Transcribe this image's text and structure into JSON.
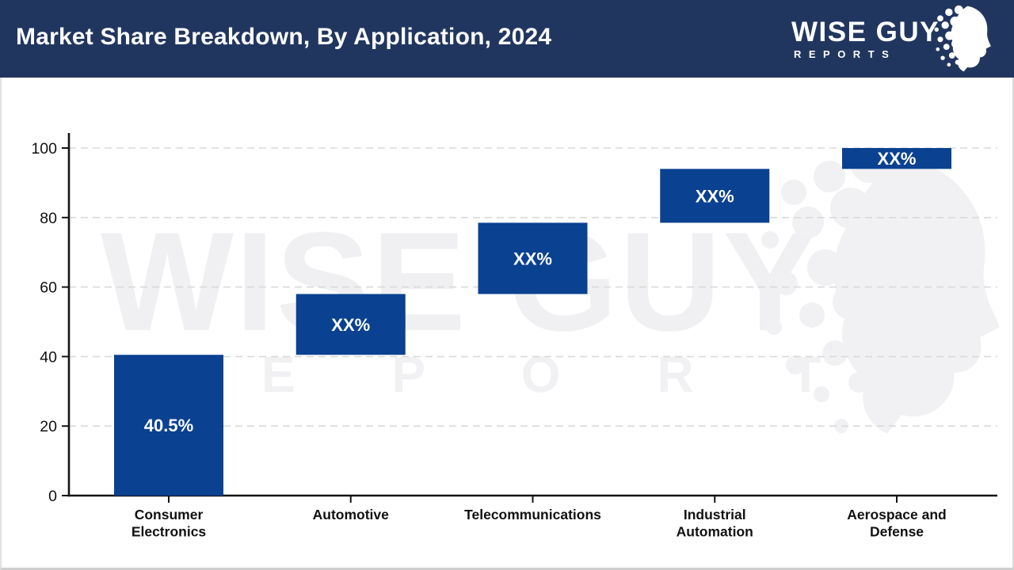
{
  "header": {
    "title": "Market Share Breakdown, By Application, 2024",
    "logo": {
      "line1": "WISE GUY",
      "line2": "REPORTS"
    }
  },
  "watermark": {
    "line1": "WISE GUY",
    "line2": "R E P O R T S"
  },
  "chart_data": {
    "type": "bar",
    "subtype": "waterfall",
    "title": "Market Share Breakdown, By Application, 2024",
    "categories": [
      "Consumer Electronics",
      "Automotive",
      "Telecommunications",
      "Industrial Automation",
      "Aerospace and Defense"
    ],
    "category_label_lines": [
      [
        "Consumer",
        "Electronics"
      ],
      [
        "Automotive"
      ],
      [
        "Telecommunications"
      ],
      [
        "Industrial",
        "Automation"
      ],
      [
        "Aerospace and",
        "Defense"
      ]
    ],
    "series": [
      {
        "name": "Market Share (%)",
        "segments": [
          {
            "category": "Consumer Electronics",
            "start": 0,
            "end": 40.5,
            "label": "40.5%"
          },
          {
            "category": "Automotive",
            "start": 40.5,
            "end": 58,
            "label": "XX%"
          },
          {
            "category": "Telecommunications",
            "start": 58,
            "end": 78.5,
            "label": "XX%"
          },
          {
            "category": "Industrial Automation",
            "start": 78.5,
            "end": 94,
            "label": "XX%"
          },
          {
            "category": "Aerospace and Defense",
            "start": 94,
            "end": 100,
            "label": "XX%"
          }
        ]
      }
    ],
    "ylim": [
      0,
      100
    ],
    "yticks": [
      0,
      20,
      40,
      60,
      80,
      100
    ],
    "grid": "horizontal-dashed",
    "legend": "none",
    "colors": {
      "bar": "#0a4191",
      "bar_label": "#ffffff",
      "axis": "#141414",
      "gridline": "#d9d9d9",
      "header_bg": "#21365f",
      "watermark": "#f0f0f3"
    }
  }
}
